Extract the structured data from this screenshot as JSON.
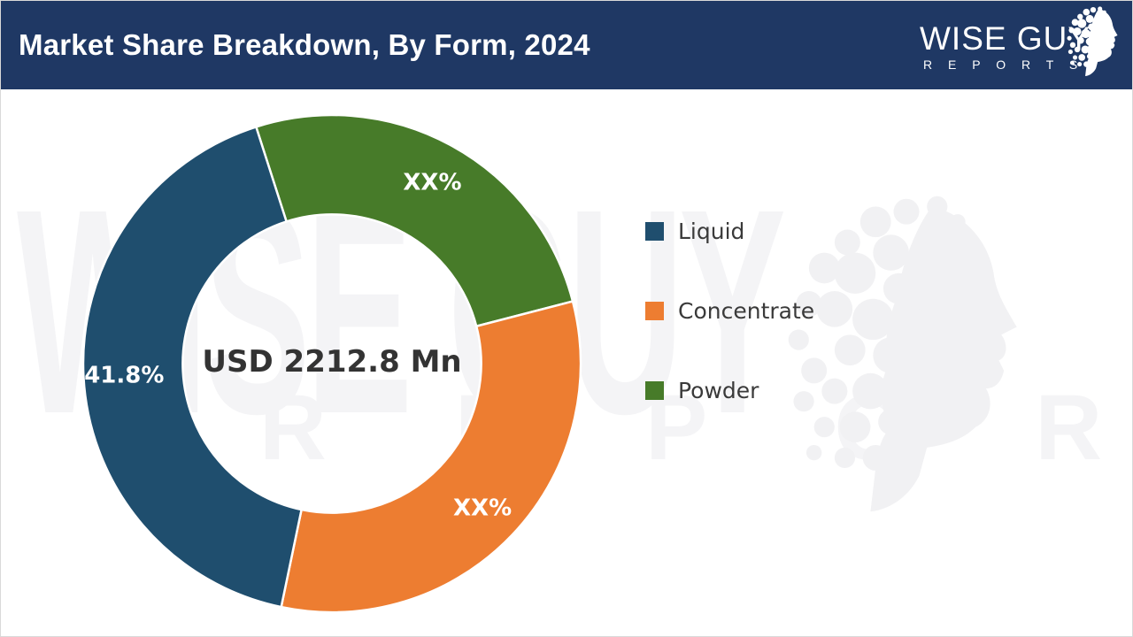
{
  "header": {
    "title": "Market Share Breakdown, By Form, 2024",
    "brand_line1": "WISE GUY",
    "brand_line2": "R E P O R T S"
  },
  "watermark": {
    "line1": "WISE GUY",
    "line2": "R E P O R T S"
  },
  "chart_data": {
    "type": "pie",
    "subtype": "donut",
    "title": "Market Share Breakdown, By Form, 2024",
    "center_label": "USD 2212.8 Mn",
    "start_angle_deg": -17.75,
    "direction": "clockwise",
    "inner_radius_ratio": 0.6,
    "legend_position": "right",
    "segments": [
      {
        "label": "Liquid",
        "value": 41.8,
        "display": "41.8%",
        "color": "#1f4e6e"
      },
      {
        "label": "Concentrate",
        "value": 32.3,
        "display": "XX%",
        "color": "#ed7d31"
      },
      {
        "label": "Powder",
        "value": 25.9,
        "display": "XX%",
        "color": "#477b29"
      }
    ]
  },
  "colors": {
    "header_bg": "#1f3864",
    "title_text": "#ffffff",
    "center_text": "#333333",
    "legend_text": "#3a3a3a",
    "segment_label_text": "#ffffff",
    "watermark": "#f4f4f6",
    "page_border": "#d9d9d9"
  }
}
